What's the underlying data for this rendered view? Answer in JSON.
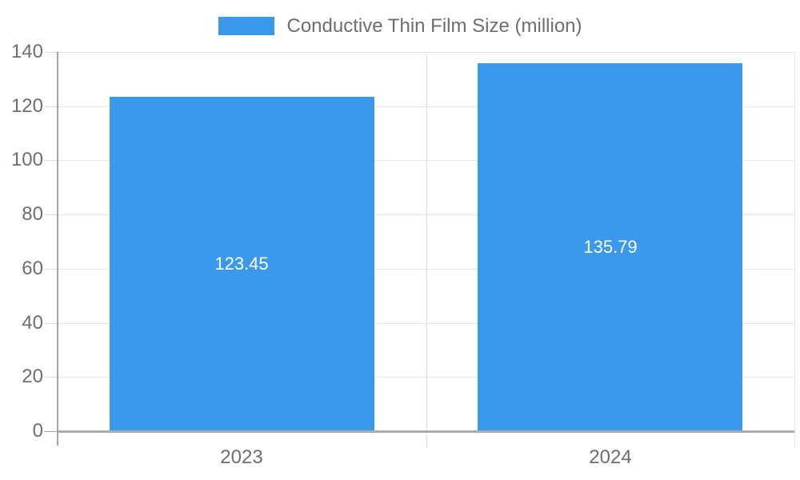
{
  "chart_data": {
    "type": "bar",
    "title": "",
    "legend": {
      "label": "Conductive Thin Film Size (million)",
      "position": "top-center"
    },
    "categories": [
      "2023",
      "2024"
    ],
    "series": [
      {
        "name": "Conductive Thin Film Size (million)",
        "color": "#3b99ec",
        "values": [
          123.45,
          135.79
        ],
        "value_labels": [
          "123.45",
          "135.79"
        ]
      }
    ],
    "xlabel": "",
    "ylabel": "",
    "ylim": [
      0,
      140
    ],
    "ytick_step": 20,
    "ytick_labels": [
      "0",
      "20",
      "40",
      "60",
      "80",
      "100",
      "120",
      "140"
    ],
    "grid": true,
    "bar_label_color": "#ffffff",
    "axis_text_color": "#6e6e6e"
  }
}
